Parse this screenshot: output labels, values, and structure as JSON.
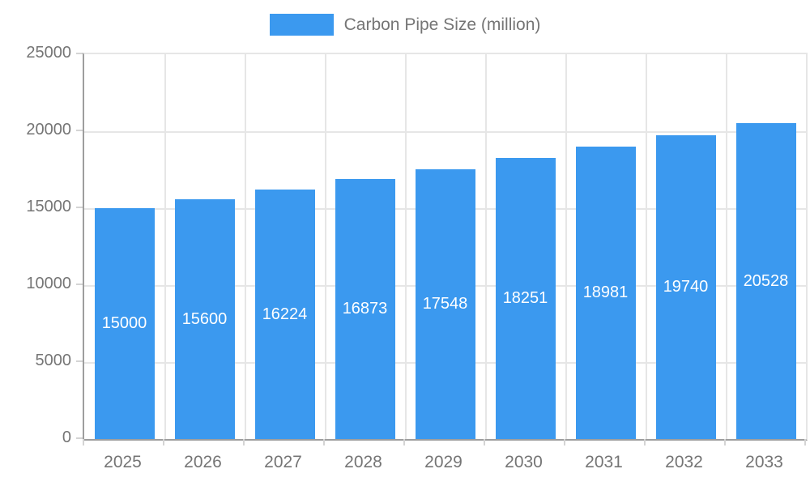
{
  "legend": {
    "label": "Carbon Pipe Size (million)"
  },
  "chart_data": {
    "type": "bar",
    "title": "Carbon Pipe Size (million)",
    "categories": [
      "2025",
      "2026",
      "2027",
      "2028",
      "2029",
      "2030",
      "2031",
      "2032",
      "2033"
    ],
    "values": [
      15000,
      15600,
      16224,
      16873,
      17548,
      18251,
      18981,
      19740,
      20528
    ],
    "xlabel": "",
    "ylabel": "",
    "ylim": [
      0,
      25000
    ],
    "y_ticks": [
      0,
      5000,
      10000,
      15000,
      20000,
      25000
    ],
    "grid": true,
    "legend_position": "top",
    "bar_labels_inside": true
  },
  "colors": {
    "bar": "#3b99ef",
    "bar_label": "#ffffff",
    "grid": "#e6e6e6",
    "axis_line": "#9e9e9e",
    "tick_mark": "#d4d4d4",
    "tick_text": "#757575",
    "background": "#ffffff"
  }
}
